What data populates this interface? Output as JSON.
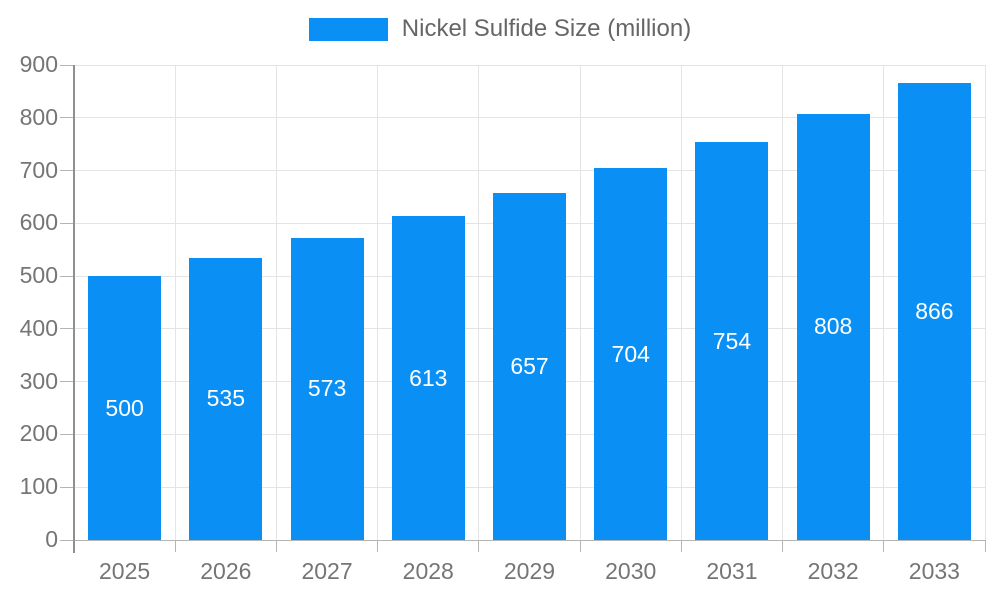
{
  "chart_data": {
    "type": "bar",
    "title": "Nickel Sulfide Size (million)",
    "legend": {
      "label": "Nickel Sulfide Size (million)",
      "position": "top-center"
    },
    "categories": [
      "2025",
      "2026",
      "2027",
      "2028",
      "2029",
      "2030",
      "2031",
      "2032",
      "2033"
    ],
    "values": [
      500,
      535,
      573,
      613,
      657,
      704,
      754,
      808,
      866
    ],
    "xlabel": "",
    "ylabel": "",
    "ylim": [
      0,
      900
    ],
    "yticks": [
      0,
      100,
      200,
      300,
      400,
      500,
      600,
      700,
      800,
      900
    ],
    "grid": true,
    "value_labels": "centered-inside-bars",
    "colors": {
      "bar": "#0a90f5",
      "value_label": "#ffffff",
      "axis_text": "#757575",
      "legend_text": "#666666",
      "gridline": "#e4e4e4",
      "baseline": "#b4b4b4",
      "y_axis_line": "#8f8f8f",
      "tick": "#b5b5b5"
    }
  }
}
